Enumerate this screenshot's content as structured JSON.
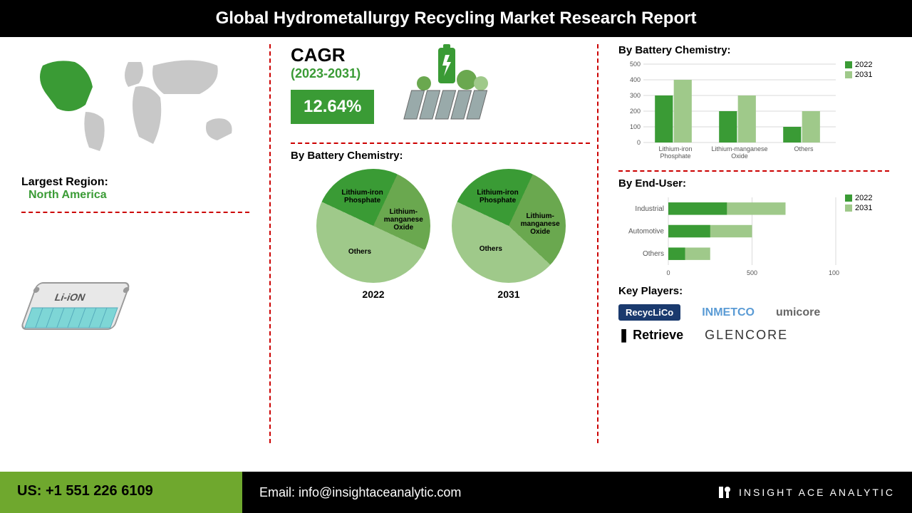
{
  "header": {
    "title": "Global Hydrometallurgy Recycling Market Research Report"
  },
  "region": {
    "label": "Largest Region:",
    "value": "North America"
  },
  "cagr": {
    "label": "CAGR",
    "period": "(2023-2031)",
    "value": "12.64%",
    "badge_bg": "#3a9b35",
    "period_color": "#3a9b35"
  },
  "colors": {
    "dark_green": "#3a9b35",
    "mid_green": "#6aa84f",
    "light_green": "#9fc98a",
    "pale_green": "#b8d8a8",
    "grid": "#cccccc",
    "divider": "#c00000",
    "map_grey": "#c8c8c8"
  },
  "bar_chart": {
    "title": "By Battery Chemistry:",
    "categories": [
      "Lithium-iron Phosphate",
      "Lithium-manganese Oxide",
      "Others"
    ],
    "series": [
      {
        "name": "2022",
        "color": "#3a9b35",
        "values": [
          300,
          200,
          100
        ]
      },
      {
        "name": "2031",
        "color": "#9fc98a",
        "values": [
          400,
          300,
          200
        ]
      }
    ],
    "ylim": [
      0,
      500
    ],
    "ytick_step": 100,
    "label_fontsize": 9
  },
  "pie_section": {
    "title": "By Battery Chemistry:",
    "pies": [
      {
        "year": "2022",
        "slices": [
          {
            "label": "Lithium-iron Phosphate",
            "value": 25,
            "color": "#3a9b35"
          },
          {
            "label": "Lithium-manganese Oxide",
            "value": 25,
            "color": "#6aa84f"
          },
          {
            "label": "Others",
            "value": 50,
            "color": "#9fc98a"
          }
        ]
      },
      {
        "year": "2031",
        "slices": [
          {
            "label": "Lithium-iron Phosphate",
            "value": 25,
            "color": "#3a9b35"
          },
          {
            "label": "Lithium-manganese Oxide",
            "value": 30,
            "color": "#6aa84f"
          },
          {
            "label": "Others",
            "value": 45,
            "color": "#9fc98a"
          }
        ]
      }
    ]
  },
  "hbar_chart": {
    "title": "By End-User:",
    "categories": [
      "Industrial",
      "Automotive",
      "Others"
    ],
    "series": [
      {
        "name": "2022",
        "color": "#3a9b35",
        "values": [
          350,
          250,
          100
        ]
      },
      {
        "name": "2031",
        "color": "#9fc98a",
        "values": [
          700,
          500,
          250
        ]
      }
    ],
    "xlim": [
      0,
      1000
    ],
    "xtick_step": 500,
    "label_fontsize": 10
  },
  "players": {
    "title": "Key Players:",
    "row1": [
      {
        "name": "RecycLiCo",
        "color": "#1a3a6e",
        "bg": "#1a3a6e",
        "fg": "#fff"
      },
      {
        "name": "INMETCO",
        "color": "#888",
        "bg": "",
        "fg": "#5a9bd5"
      },
      {
        "name": "umicore",
        "color": "#00a0a0",
        "bg": "",
        "fg": "#666"
      }
    ],
    "row2": [
      {
        "name": "Retrieve",
        "color": "#000",
        "bg": "",
        "fg": "#000",
        "bold": true
      },
      {
        "name": "GLENCORE",
        "color": "#333",
        "bg": "",
        "fg": "#333",
        "spaced": true
      }
    ]
  },
  "footer": {
    "phone_label": "US: +1 551 226 6109",
    "email_label": "Email: info@insightaceanalytic.com",
    "brand": "INSIGHT ACE ANALYTIC"
  }
}
